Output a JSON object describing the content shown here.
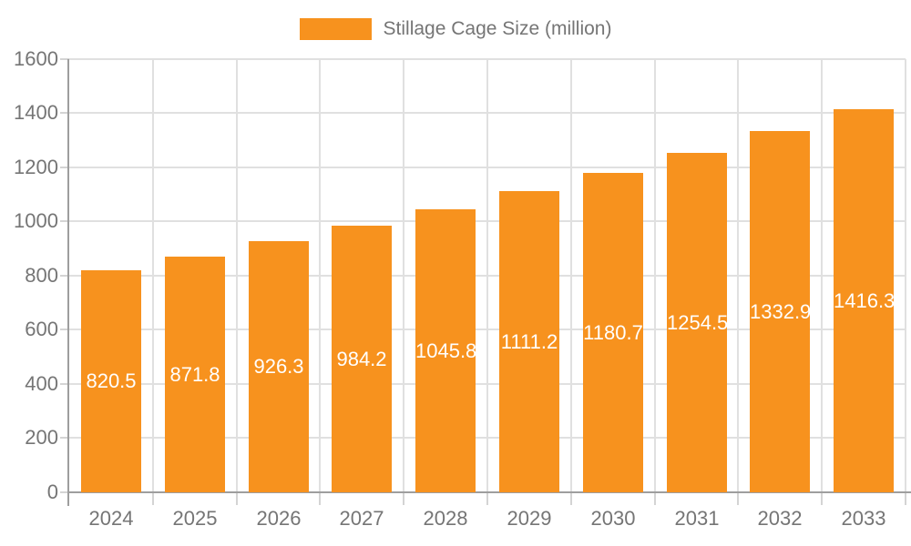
{
  "legend": {
    "label": "Stillage Cage Size (million)"
  },
  "colors": {
    "bar": "#f7921e",
    "bar_label_text": "#ffffff",
    "axis_text": "#757575",
    "grid_line": "#e0e0e0",
    "axis_line": "#9e9e9e",
    "tick_line": "#d4d4d4",
    "background": "#ffffff"
  },
  "chart_data": {
    "type": "bar",
    "title": "",
    "categories": [
      "2024",
      "2025",
      "2026",
      "2027",
      "2028",
      "2029",
      "2030",
      "2031",
      "2032",
      "2033"
    ],
    "series": [
      {
        "name": "Stillage Cage Size (million)",
        "values": [
          820.5,
          871.8,
          926.3,
          984.2,
          1045.8,
          1111.2,
          1180.7,
          1254.5,
          1332.9,
          1416.3
        ]
      }
    ],
    "value_labels": [
      "820.5",
      "871.8",
      "926.3",
      "984.2",
      "1045.8",
      "1111.2",
      "1180.7",
      "1254.5",
      "1332.9",
      "1416.3"
    ],
    "xlabel": "",
    "ylabel": "",
    "ylim": [
      0,
      1600
    ],
    "yticks": [
      0,
      200,
      400,
      600,
      800,
      1000,
      1200,
      1400,
      1600
    ],
    "grid": true,
    "legend_position": "top-center",
    "bar_width_fraction": 0.72,
    "value_label_placement": "inside-center"
  }
}
